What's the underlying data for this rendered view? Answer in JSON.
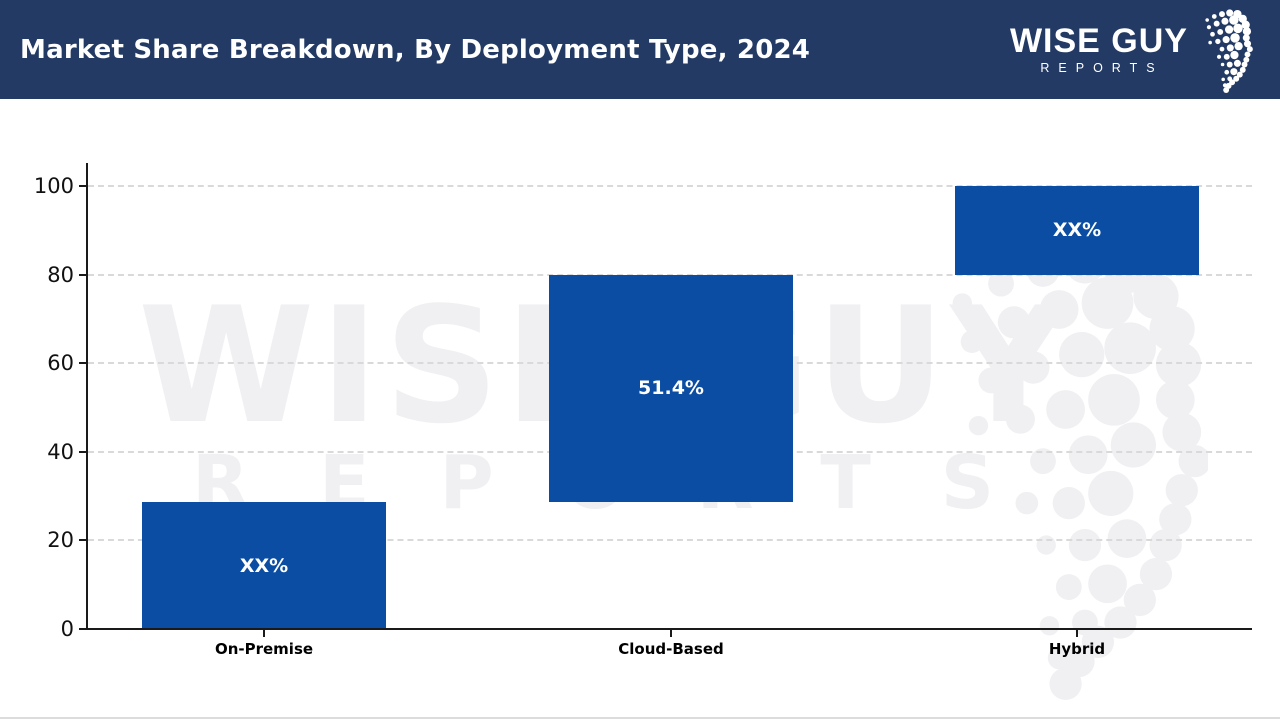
{
  "header": {
    "title": "Market Share Breakdown, By Deployment Type, 2024",
    "logo": {
      "wordmark": "WISE GUY",
      "subtext": "REPORTS"
    }
  },
  "watermark": {
    "line1": "WISE GUY",
    "line2": "REPORTS"
  },
  "chart_data": {
    "type": "bar",
    "subtype": "stacked-waterfall",
    "title": "Market Share Breakdown, By Deployment Type, 2024",
    "categories": [
      "On-Premise",
      "Cloud-Based",
      "Hybrid"
    ],
    "bars": [
      {
        "category": "On-Premise",
        "start": 0,
        "end": 28.6,
        "label": "XX%"
      },
      {
        "category": "Cloud-Based",
        "start": 28.6,
        "end": 80,
        "label": "51.4%"
      },
      {
        "category": "Hybrid",
        "start": 80,
        "end": 100,
        "label": "XX%"
      }
    ],
    "segment_sizes_estimated_from_gridlines": [
      28.6,
      51.4,
      20
    ],
    "ylim": [
      0,
      100
    ],
    "yticks": [
      0,
      20,
      40,
      60,
      80,
      100
    ],
    "xlabel": "",
    "ylabel": "",
    "grid": "horizontal-dashed",
    "legend": "none"
  },
  "colors": {
    "header_bg": "#233a64",
    "bar": "#0b4da2",
    "axis": "#1a1a1a",
    "grid": "#d9d9d9",
    "tick_label": "#111111",
    "bar_label": "#ffffff",
    "title_text": "#ffffff",
    "watermark": "#f0f0f3"
  }
}
